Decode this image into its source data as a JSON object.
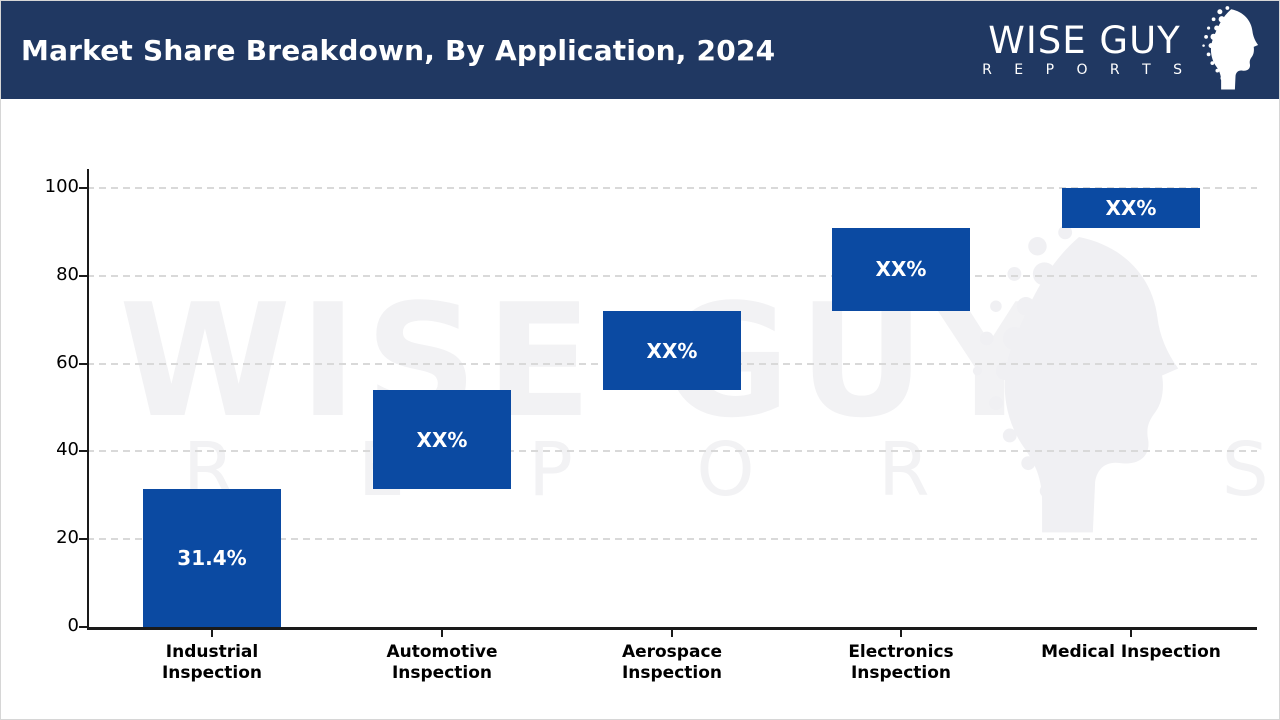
{
  "header": {
    "title": "Market Share Breakdown, By Application, 2024",
    "bg_color": "#203862",
    "logo": {
      "line1": "WISE GUY",
      "line2": "R E P O R T S"
    }
  },
  "watermark": {
    "line1": "WISE GUY",
    "line2": "R E P O R T S",
    "color": "#f2f2f4"
  },
  "chart_data": {
    "type": "bar",
    "subtype": "waterfall-stacked-segments",
    "title": "Market Share Breakdown, By Application, 2024",
    "categories": [
      "Industrial Inspection",
      "Automotive Inspection",
      "Aerospace Inspection",
      "Electronics Inspection",
      "Medical Inspection"
    ],
    "category_lines": [
      [
        "Industrial",
        "Inspection"
      ],
      [
        "Automotive",
        "Inspection"
      ],
      [
        "Aerospace",
        "Inspection"
      ],
      [
        "Electronics",
        "Inspection"
      ],
      [
        "Medical Inspection"
      ]
    ],
    "series": [
      {
        "name": "Market Share (%)",
        "segments": [
          {
            "category": "Industrial Inspection",
            "start": 0,
            "end": 31.4,
            "label": "31.4%"
          },
          {
            "category": "Automotive Inspection",
            "start": 31.4,
            "end": 53.9,
            "label": "XX%"
          },
          {
            "category": "Aerospace Inspection",
            "start": 53.9,
            "end": 71.9,
            "label": "XX%"
          },
          {
            "category": "Electronics Inspection",
            "start": 71.9,
            "end": 91.0,
            "label": "XX%"
          },
          {
            "category": "Medical Inspection",
            "start": 91.0,
            "end": 100,
            "label": "XX%"
          }
        ]
      }
    ],
    "bar_color": "#0b4aa2",
    "bar_label_color": "#ffffff",
    "ylim": [
      0,
      100
    ],
    "yticks": [
      0,
      20,
      40,
      60,
      80,
      100
    ],
    "xlabel": "",
    "ylabel": "",
    "grid": "horizontal-dashed",
    "legend": "none"
  }
}
